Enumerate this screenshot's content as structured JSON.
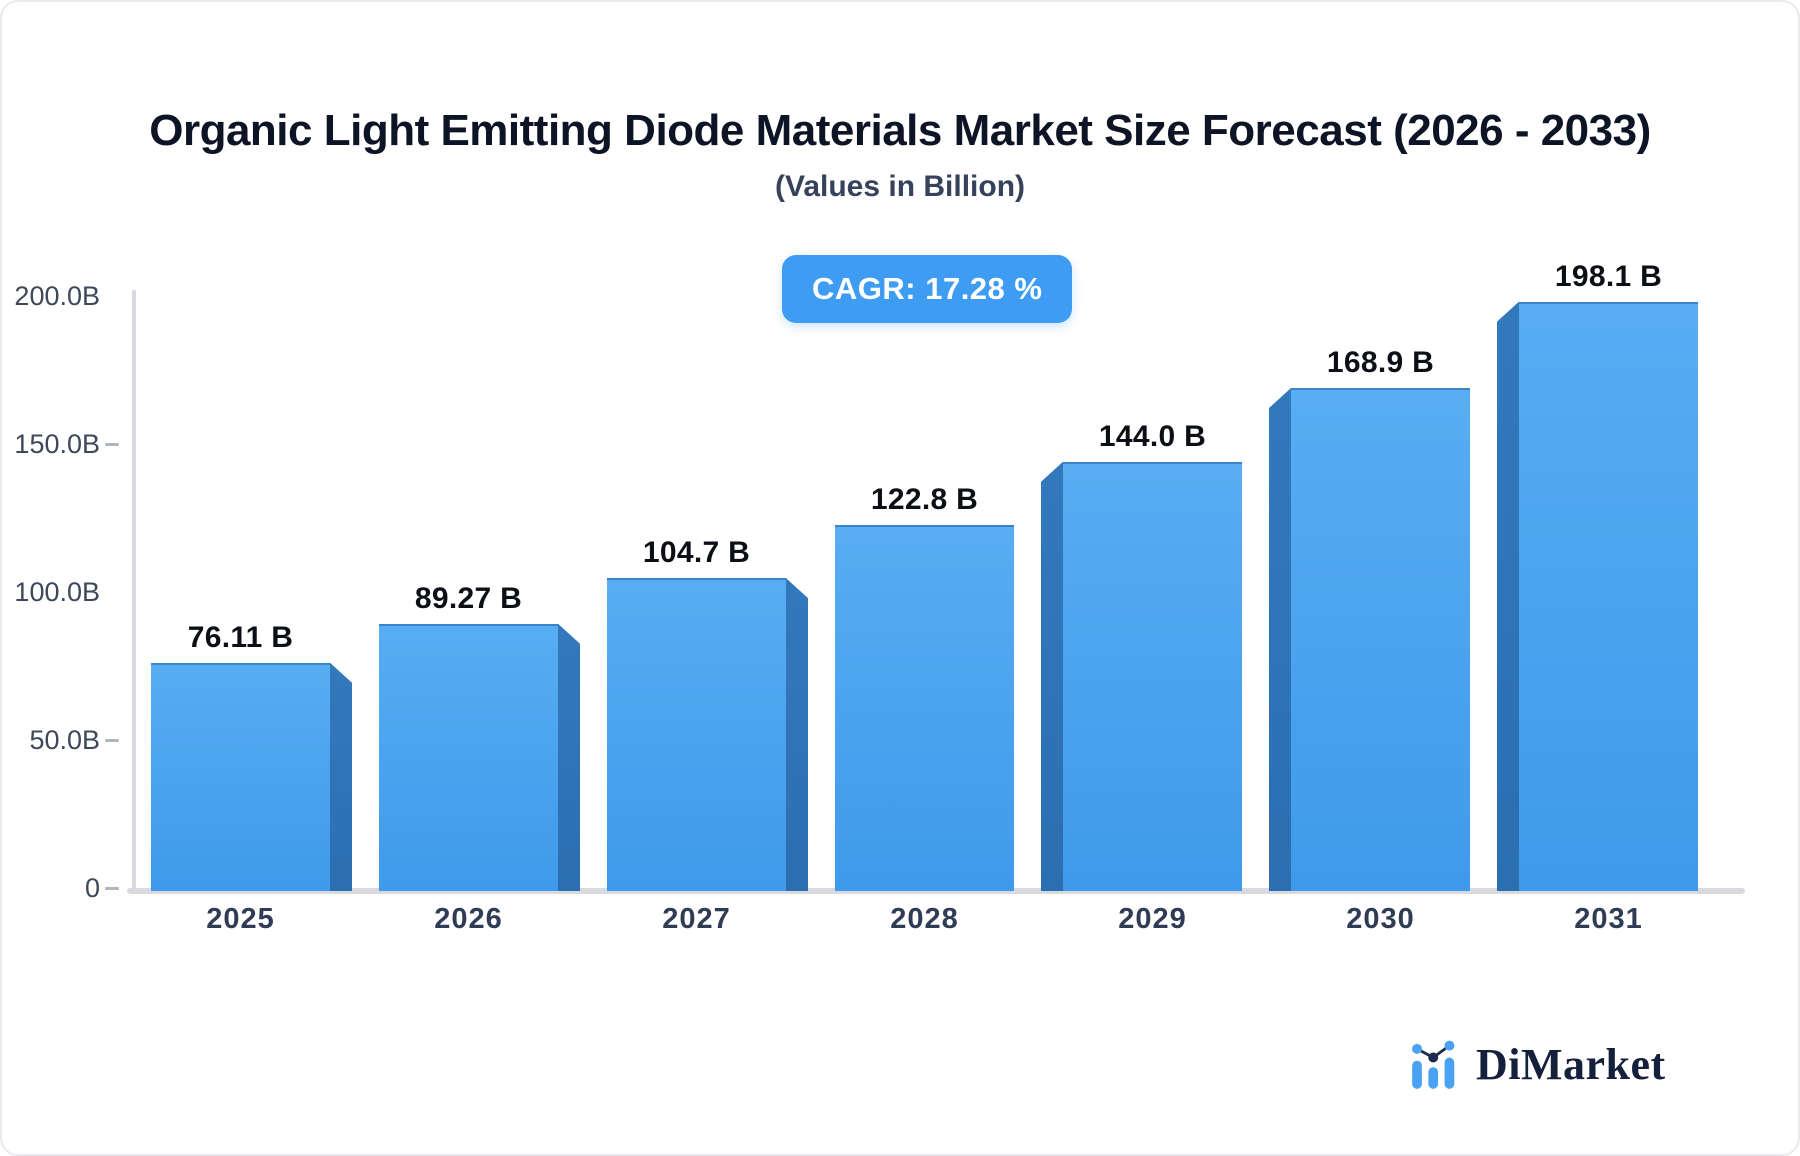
{
  "header": {
    "title": "Organic Light Emitting Diode Materials Market Size Forecast (2026 - 2033)",
    "subtitle": "(Values in Billion)"
  },
  "badge": {
    "label": "CAGR: 17.28 %"
  },
  "chart_data": {
    "type": "bar",
    "title": "Organic Light Emitting Diode Materials Market Size Forecast (2026 - 2033)",
    "subtitle": "(Values in Billion)",
    "categories": [
      "2025",
      "2026",
      "2027",
      "2028",
      "2029",
      "2030",
      "2031"
    ],
    "values": [
      76.11,
      89.27,
      104.7,
      122.8,
      144.0,
      168.9,
      198.1
    ],
    "value_labels": [
      "76.11 B",
      "89.27 B",
      "104.7 B",
      "122.8 B",
      "144.0 B",
      "168.9 B",
      "198.1 B"
    ],
    "cagr_label": "CAGR: 17.28 %",
    "xlabel": "",
    "ylabel": "",
    "ylim": [
      0,
      200
    ],
    "y_ticks": [
      {
        "value": 0,
        "label": "0"
      },
      {
        "value": 50,
        "label": "50.0B"
      },
      {
        "value": 100,
        "label": "100.0B"
      },
      {
        "value": 150,
        "label": "150.0B"
      },
      {
        "value": 200,
        "label": "200.0B"
      }
    ],
    "y_tick_marks": [
      0,
      50,
      150
    ],
    "grid": false,
    "legend": false,
    "bar_color": "#459fec",
    "bar_side_color": "#2d72b4"
  },
  "logo": {
    "text": "DiMarket"
  },
  "colors": {
    "accent_blue": "#3e9df2",
    "axis_gray": "#d8dadf",
    "navy": "#15203c",
    "logo_blue": "#4aa2f3"
  }
}
